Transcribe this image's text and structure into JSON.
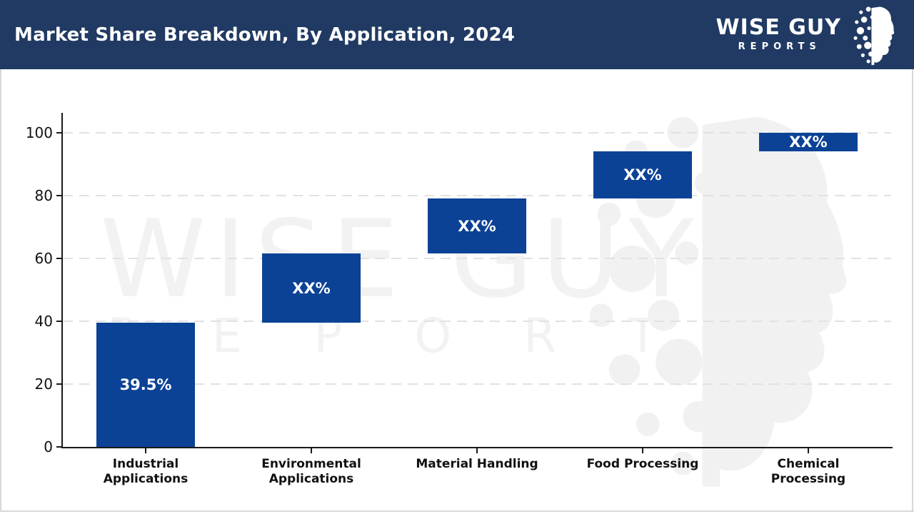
{
  "header": {
    "title": "Market Share Breakdown, By Application, 2024",
    "logo": {
      "wordmark": "WISE GUY",
      "subtext": "REPORTS"
    }
  },
  "watermark": {
    "wordmark": "WISE GUY",
    "subtext": "R E P O R T S"
  },
  "chart_data": {
    "type": "bar",
    "subtype": "floating-segment-waterfall",
    "title": "Market Share Breakdown, By Application, 2024",
    "categories": [
      "Industrial\nApplications",
      "Environmental\nApplications",
      "Material Handling",
      "Food Processing",
      "Chemical\nProcessing"
    ],
    "segments": [
      {
        "category": "Industrial Applications",
        "start": 0,
        "end": 39.5,
        "label": "39.5%"
      },
      {
        "category": "Environmental Applications",
        "start": 39.5,
        "end": 61.5,
        "label": "XX%"
      },
      {
        "category": "Material Handling",
        "start": 61.5,
        "end": 79,
        "label": "XX%"
      },
      {
        "category": "Food Processing",
        "start": 79,
        "end": 94,
        "label": "XX%"
      },
      {
        "category": "Chemical Processing",
        "start": 94,
        "end": 100,
        "label": "XX%"
      }
    ],
    "yticks": [
      0,
      20,
      40,
      60,
      80,
      100
    ],
    "ylim": [
      0,
      104
    ],
    "xlabel": "",
    "ylabel": "",
    "legend": "none",
    "grid": "horizontal-dashed",
    "bar_color": "#0b4296",
    "value_label_color": "#ffffff"
  },
  "colors": {
    "header_bg": "#203a63",
    "bar": "#0b4296",
    "grid": "#e2e2e2",
    "axis": "#1a1a1a",
    "watermark": "#f2f2f3",
    "border": "#d8d8d8"
  }
}
